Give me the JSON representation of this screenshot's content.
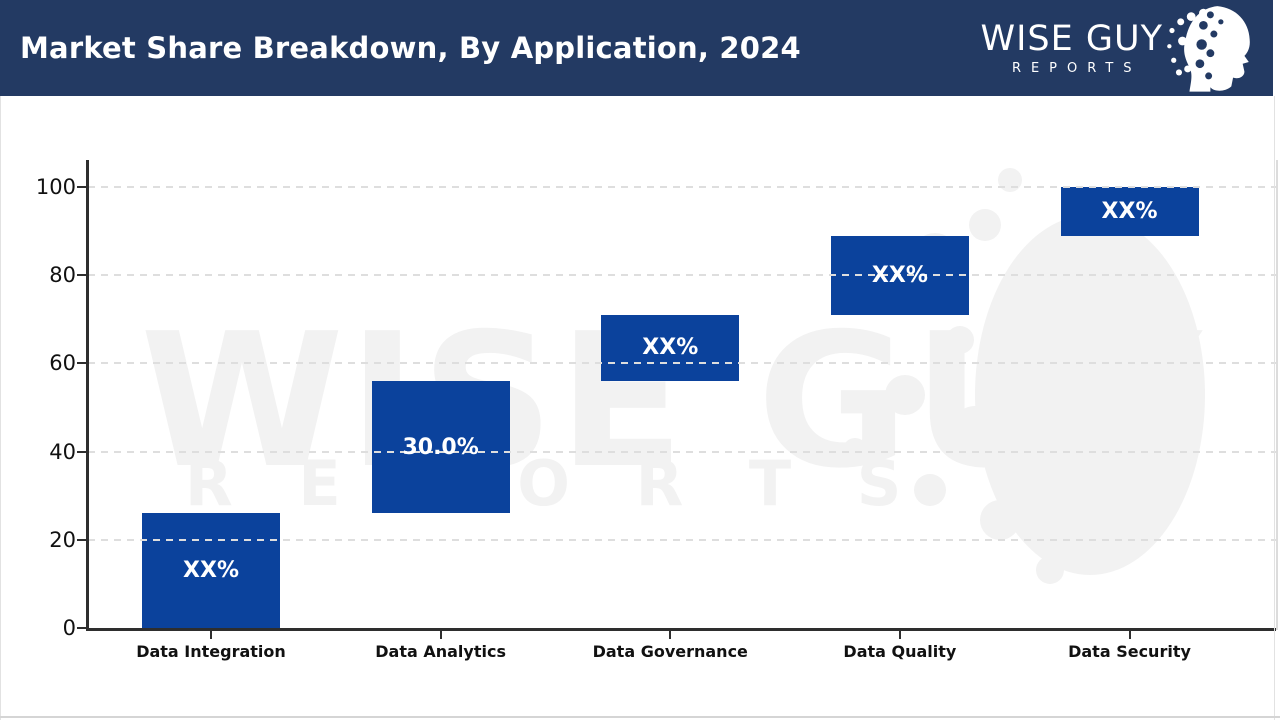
{
  "header": {
    "title": "Market Share Breakdown, By Application, 2024",
    "bg_color": "#233A63",
    "logo": {
      "line1": "WISE GUY",
      "line2": "REPORTS"
    }
  },
  "watermark": {
    "line1": "WISE GUY",
    "line2": "R E P O R T S"
  },
  "chart_data": {
    "type": "bar",
    "subtype": "waterfall",
    "title": "Market Share Breakdown, By Application, 2024",
    "xlabel": "",
    "ylabel": "",
    "categories": [
      "Data Integration",
      "Data Analytics",
      "Data Governance",
      "Data Quality",
      "Data Security"
    ],
    "segments": [
      {
        "category": "Data Integration",
        "start": 0,
        "end": 26,
        "label": "XX%"
      },
      {
        "category": "Data Analytics",
        "start": 26,
        "end": 56,
        "label": "30.0%"
      },
      {
        "category": "Data Governance",
        "start": 56,
        "end": 71,
        "label": "XX%"
      },
      {
        "category": "Data Quality",
        "start": 71,
        "end": 89,
        "label": "XX%"
      },
      {
        "category": "Data Security",
        "start": 89,
        "end": 100,
        "label": "XX%"
      }
    ],
    "y_ticks": [
      0,
      20,
      40,
      60,
      80,
      100
    ],
    "ylim": [
      0,
      105
    ],
    "grid": "horizontal-dashed-over-bars",
    "legend": "none",
    "bar_color": "#0B429C",
    "bar_label_color": "#FFFFFF",
    "grid_color": "#DEDEDE",
    "axis_color": "#2E2E2E"
  }
}
